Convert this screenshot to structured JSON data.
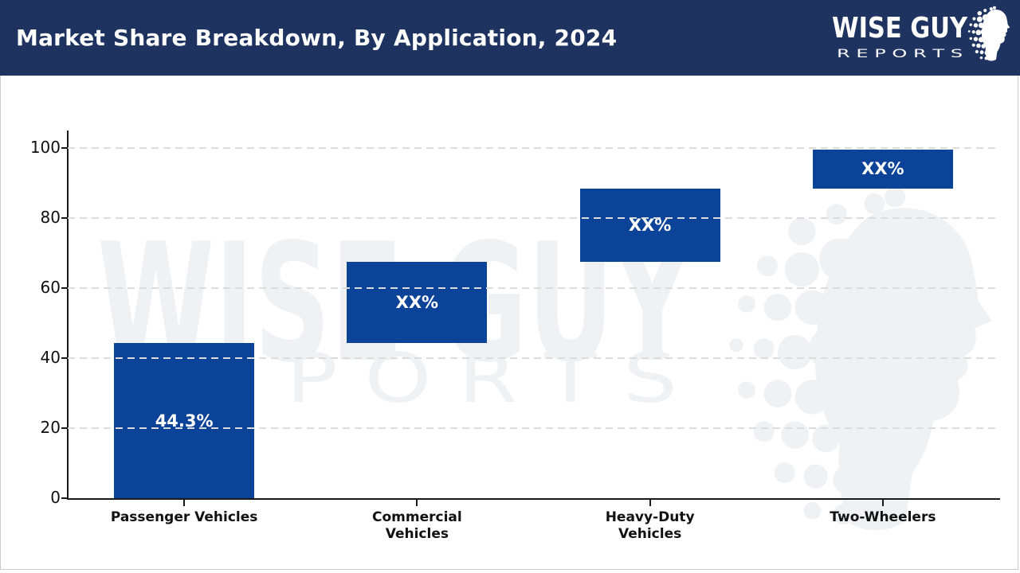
{
  "header": {
    "title": "Market Share Breakdown, By Application, 2024",
    "logo": {
      "wordmark": "WISE GUY",
      "subtext": "R E P O R T S"
    }
  },
  "watermark": {
    "line1": "WISE GUY",
    "line2": "R E P O R T S"
  },
  "colors": {
    "header_bg": "#1f3361",
    "bar_blue": "#0b4399",
    "grid_gray": "#dcdcdc",
    "axis_black": "#1a1a1a",
    "watermark_gray": "#eff1f4",
    "frame_gray": "#cccccc"
  },
  "chart_data": {
    "type": "bar",
    "subtype": "waterfall-stacked-percentage",
    "title": "Market Share Breakdown, By Application, 2024",
    "unit": "%",
    "categories": [
      {
        "lines": [
          "Passenger Vehicles"
        ]
      },
      {
        "lines": [
          "Commercial",
          "Vehicles"
        ]
      },
      {
        "lines": [
          "Heavy-Duty",
          "Vehicles"
        ]
      },
      {
        "lines": [
          "Two-Wheelers"
        ]
      }
    ],
    "segments": [
      {
        "category": "Passenger Vehicles",
        "label": "44.3%",
        "start": 0,
        "end": 44.3,
        "value": 44.3
      },
      {
        "category": "Commercial Vehicles",
        "label": "XX%",
        "start": 44.3,
        "end": 67.6,
        "value_estimate": 23.3
      },
      {
        "category": "Heavy-Duty Vehicles",
        "label": "XX%",
        "start": 67.6,
        "end": 88.4,
        "value_estimate": 20.8
      },
      {
        "category": "Two-Wheelers",
        "label": "XX%",
        "start": 88.4,
        "end": 99.6,
        "value_estimate": 11.2
      }
    ],
    "y_ticks": [
      0,
      20,
      40,
      60,
      80,
      100
    ],
    "ylim": [
      0,
      105
    ],
    "grid": "horizontal-dashed",
    "legend": "none"
  }
}
